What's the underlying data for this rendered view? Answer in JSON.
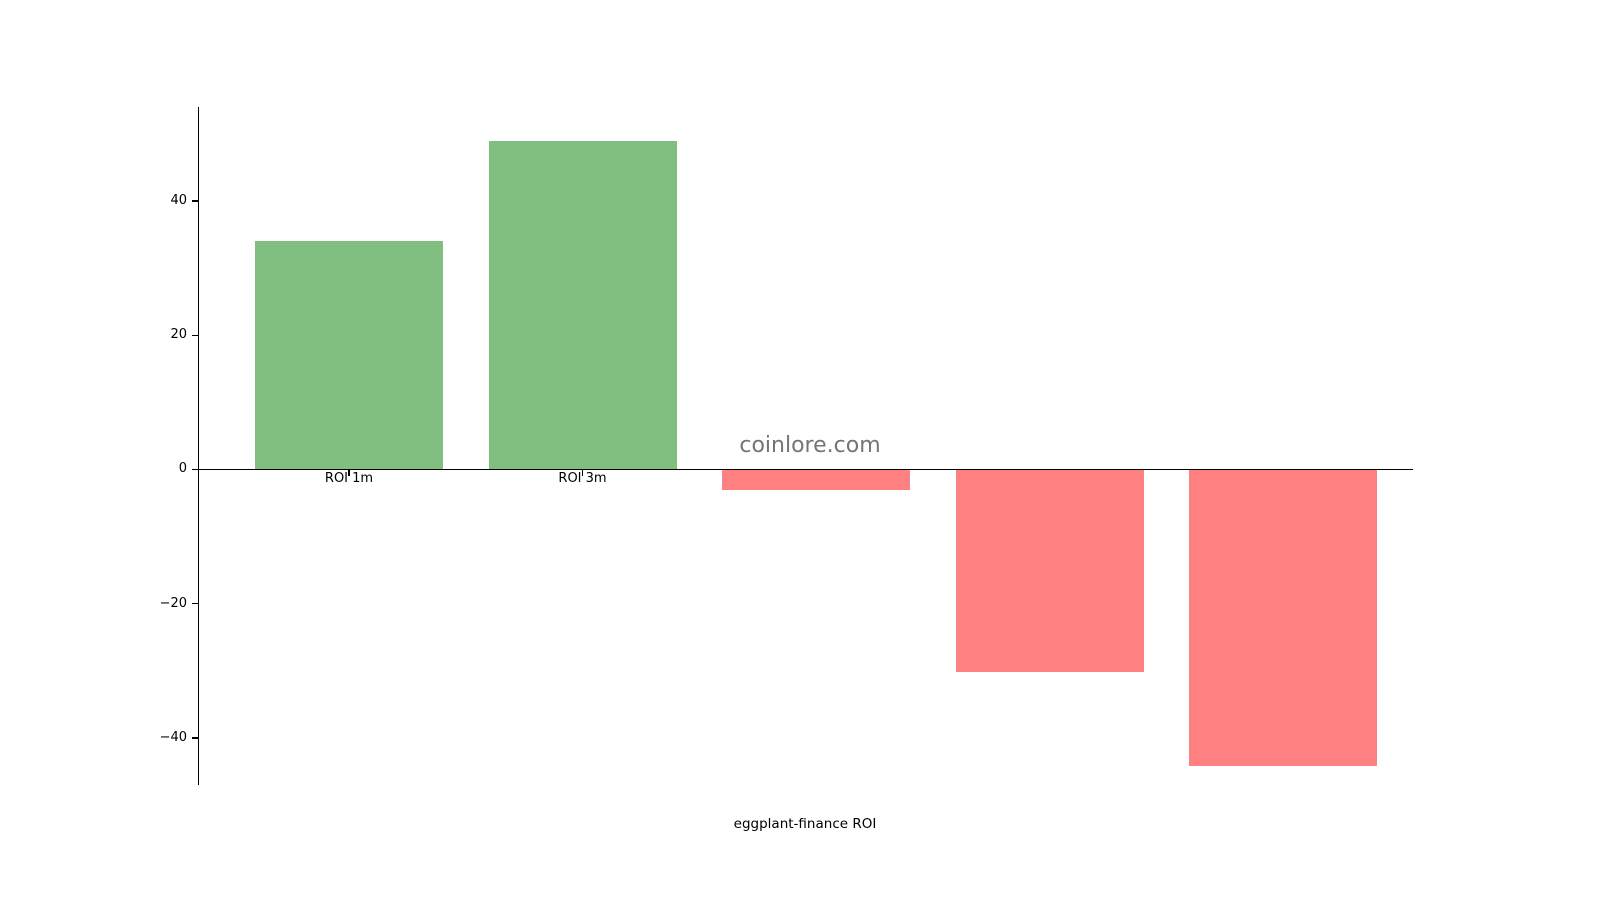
{
  "watermark": {
    "text": "coinlore.com",
    "color": "#757575"
  },
  "chart_data": {
    "type": "bar",
    "title": "eggplant-finance ROI",
    "xlabel": "",
    "ylabel": "",
    "categories": [
      "ROI 1m",
      "ROI 3m",
      "",
      "",
      ""
    ],
    "values": [
      34,
      49,
      -3,
      -30,
      -44
    ],
    "yticks": [
      40,
      20,
      0,
      -20,
      -40
    ],
    "ytick_labels": [
      "40",
      "20",
      "0",
      "−20",
      "−40"
    ],
    "ylim": [
      -47,
      54
    ],
    "grid": false,
    "legend": false,
    "positive_color": "#80bf80",
    "negative_color": "#ff8080",
    "axis_color": "#000000"
  }
}
